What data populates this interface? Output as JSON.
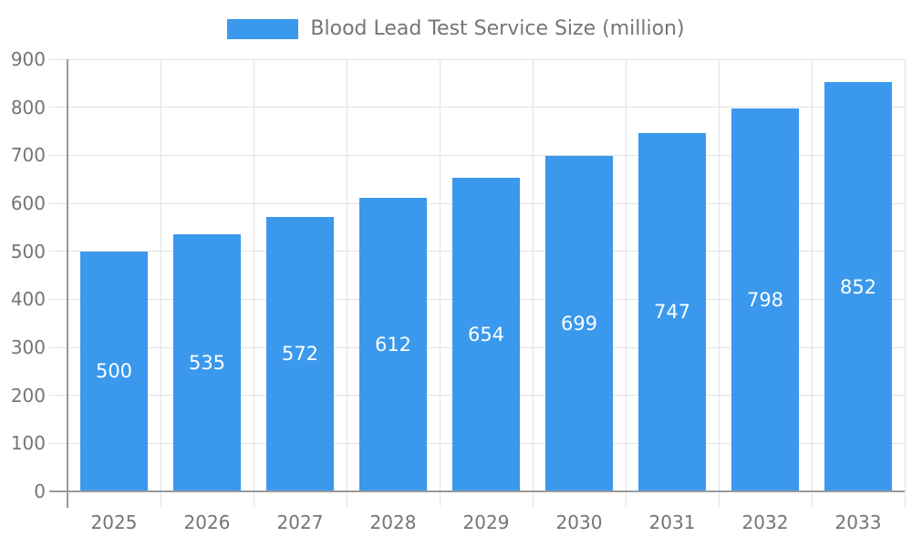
{
  "chart_data": {
    "type": "bar",
    "title": "Blood Lead Test Service Size (million)",
    "legend": {
      "position": "top",
      "label": "Blood Lead Test Service Size (million)",
      "swatch_color": "#3a99ec"
    },
    "categories": [
      "2025",
      "2026",
      "2027",
      "2028",
      "2029",
      "2030",
      "2031",
      "2032",
      "2033"
    ],
    "values": [
      500,
      535,
      572,
      612,
      654,
      699,
      747,
      798,
      852
    ],
    "xlabel": "",
    "ylabel": "",
    "ylim": [
      0,
      900
    ],
    "yticks": [
      0,
      100,
      200,
      300,
      400,
      500,
      600,
      700,
      800,
      900
    ],
    "grid": true,
    "colors": {
      "bar": "#3a99ec",
      "value_label": "#ffffff",
      "axis_text": "#757575",
      "axis_line": "#9a9a9a",
      "grid_line": "#e3e3e3",
      "background": "#ffffff"
    }
  }
}
